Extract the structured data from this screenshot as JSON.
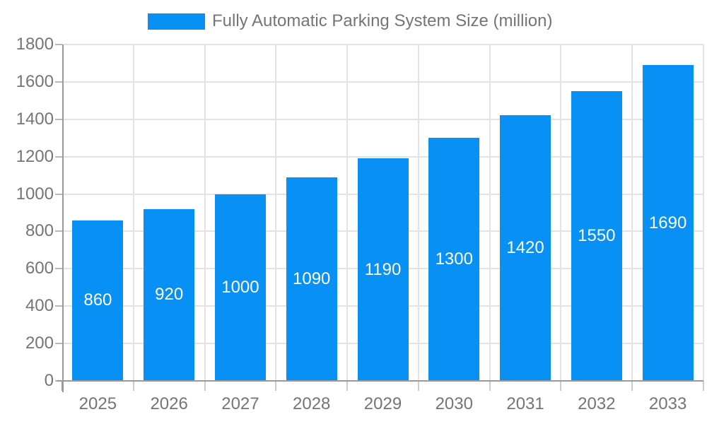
{
  "legend": {
    "label": "Fully Automatic Parking System Size (million)"
  },
  "chart_data": {
    "type": "bar",
    "title": "",
    "xlabel": "",
    "ylabel": "",
    "categories": [
      "2025",
      "2026",
      "2027",
      "2028",
      "2029",
      "2030",
      "2031",
      "2032",
      "2033"
    ],
    "series": [
      {
        "name": "Fully Automatic Parking System Size (million)",
        "values": [
          860,
          920,
          1000,
          1090,
          1190,
          1300,
          1420,
          1550,
          1690
        ]
      }
    ],
    "data_labels": [
      860,
      920,
      1000,
      1090,
      1190,
      1300,
      1420,
      1550,
      1690
    ],
    "data_label_position": "inside-center",
    "ylim": [
      0,
      1800
    ],
    "ytick_step": 200,
    "yticks": [
      0,
      200,
      400,
      600,
      800,
      1000,
      1200,
      1400,
      1600,
      1800
    ],
    "grid": true,
    "legend_position": "top",
    "colors": {
      "bar": "#0990f5",
      "bar_value_text": "#ffffff",
      "axis_text": "#757575",
      "gridline": "#e3e3e3",
      "axis_line": "#9a9a9a",
      "y_tick": "#b8b8b8",
      "x_tick": "#cccccc",
      "background": "#ffffff"
    }
  }
}
